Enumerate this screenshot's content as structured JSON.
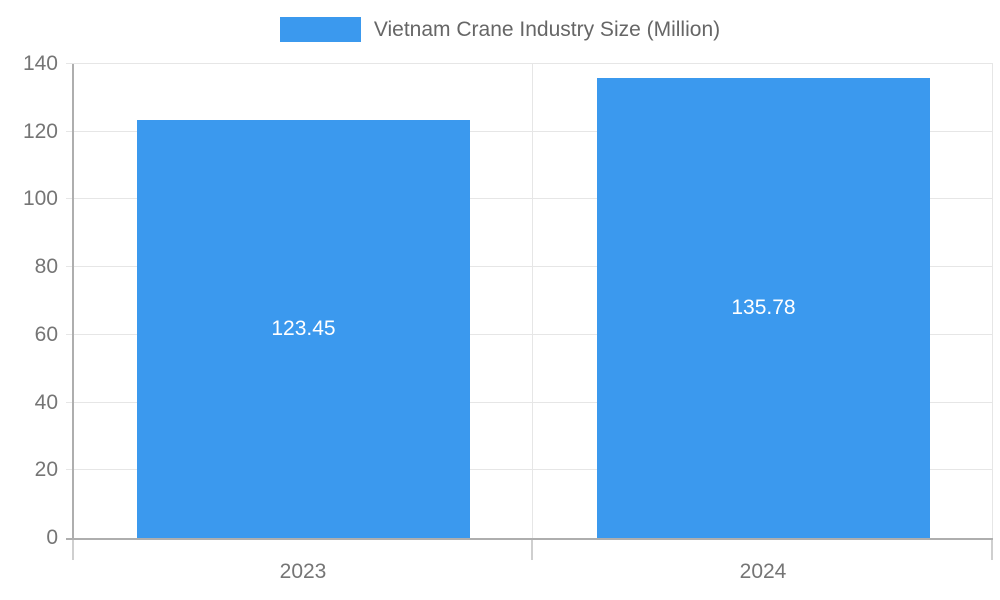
{
  "legend": {
    "label": "Vietnam Crane Industry Size (Million)",
    "swatch_color": "#3b99ee"
  },
  "chart_data": {
    "type": "bar",
    "title": "",
    "legend_entries": [
      "Vietnam Crane Industry Size (Million)"
    ],
    "legend_position": "top-center",
    "categories": [
      "2023",
      "2024"
    ],
    "series": [
      {
        "name": "Vietnam Crane Industry Size (Million)",
        "values": [
          123.45,
          135.78
        ],
        "color": "#3b99ee"
      }
    ],
    "data_labels": [
      "123.45",
      "135.78"
    ],
    "data_label_color": "#ffffff",
    "xlabel": "",
    "ylabel": "",
    "ylim": [
      0,
      140
    ],
    "yticks": [
      0,
      20,
      40,
      60,
      80,
      100,
      120,
      140
    ],
    "ytick_labels": [
      "0",
      "20",
      "40",
      "60",
      "80",
      "100",
      "120",
      "140"
    ],
    "grid": true
  },
  "colors": {
    "bar": "#3b99ee",
    "grid": "#e6e6e6",
    "axis": "#aeaeae",
    "boundary_tick": "#cfcfcf",
    "axis_text": "#757575",
    "legend_text": "#666666",
    "background": "#ffffff"
  }
}
